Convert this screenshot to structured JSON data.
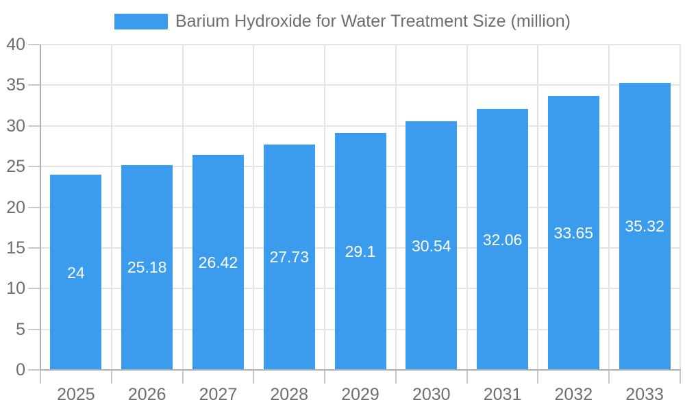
{
  "chart_data": {
    "type": "bar",
    "title": "Barium Hydroxide for Water Treatment Size (million)",
    "series_name": "Barium Hydroxide for Water Treatment Size (million)",
    "categories": [
      "2025",
      "2026",
      "2027",
      "2028",
      "2029",
      "2030",
      "2031",
      "2032",
      "2033"
    ],
    "values": [
      24,
      25.18,
      26.42,
      27.73,
      29.1,
      30.54,
      32.06,
      33.65,
      35.32
    ],
    "xlabel": "",
    "ylabel": "",
    "ylim": [
      0,
      40
    ],
    "ytick_step": 5,
    "ytick_labels": [
      "0",
      "5",
      "10",
      "15",
      "20",
      "25",
      "30",
      "35",
      "40"
    ],
    "grid": true,
    "legend_position": "top-center",
    "value_labels_position": "inside-center",
    "colors": {
      "bar": "#3b9cee",
      "value_label": "#ffffff",
      "axis_text": "#6e6e6e",
      "legend_text": "#6e6e6e",
      "gridline": "#e4e4e4",
      "axis_line": "#b0b0b0",
      "tick": "#c9c9c9",
      "background": "#ffffff"
    }
  }
}
